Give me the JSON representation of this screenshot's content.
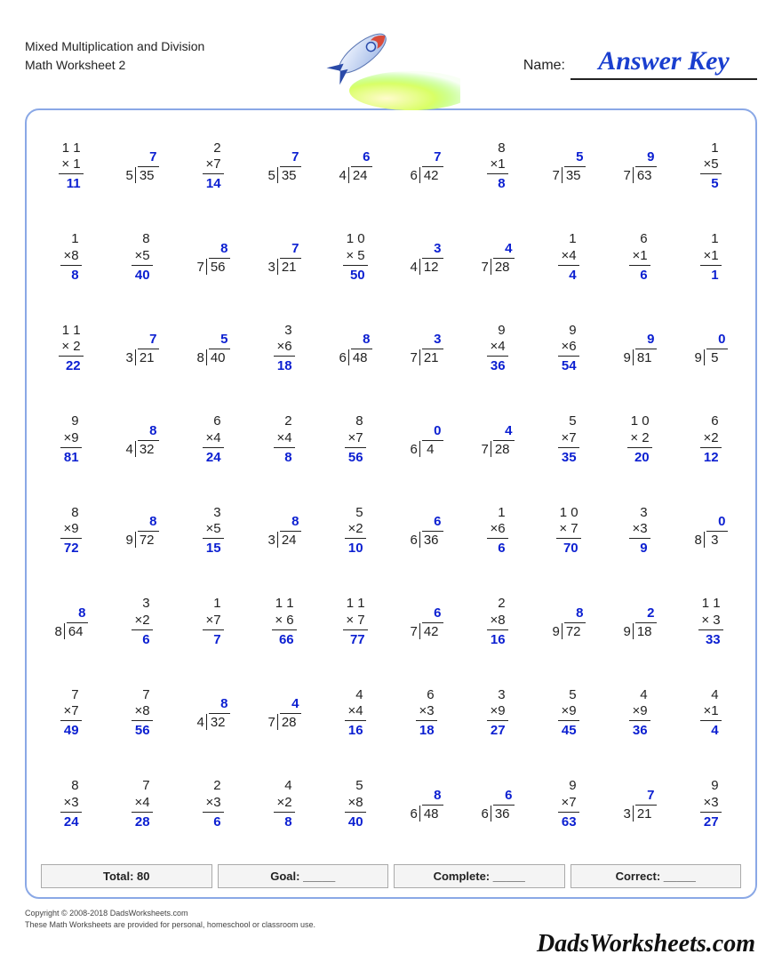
{
  "header": {
    "title_line1": "Mixed Multiplication and Division",
    "title_line2": "Math Worksheet 2",
    "name_label": "Name:",
    "answer_key": "Answer Key"
  },
  "colors": {
    "answer": "#0b1fd1",
    "frame_border": "#8aa8e6",
    "text": "#222222",
    "bg": "#ffffff"
  },
  "problems": [
    [
      {
        "t": "m",
        "a": "1 1",
        "b": "× 1",
        "ans": "11"
      },
      {
        "t": "d",
        "dvr": "5",
        "dvd": "35",
        "q": "7"
      },
      {
        "t": "m",
        "a": "2",
        "b": "×7",
        "ans": "14"
      },
      {
        "t": "d",
        "dvr": "5",
        "dvd": "35",
        "q": "7"
      },
      {
        "t": "d",
        "dvr": "4",
        "dvd": "24",
        "q": "6"
      },
      {
        "t": "d",
        "dvr": "6",
        "dvd": "42",
        "q": "7"
      },
      {
        "t": "m",
        "a": "8",
        "b": "×1",
        "ans": "8"
      },
      {
        "t": "d",
        "dvr": "7",
        "dvd": "35",
        "q": "5"
      },
      {
        "t": "d",
        "dvr": "7",
        "dvd": "63",
        "q": "9"
      },
      {
        "t": "m",
        "a": "1",
        "b": "×5",
        "ans": "5"
      }
    ],
    [
      {
        "t": "m",
        "a": "1",
        "b": "×8",
        "ans": "8"
      },
      {
        "t": "m",
        "a": "8",
        "b": "×5",
        "ans": "40"
      },
      {
        "t": "d",
        "dvr": "7",
        "dvd": "56",
        "q": "8"
      },
      {
        "t": "d",
        "dvr": "3",
        "dvd": "21",
        "q": "7"
      },
      {
        "t": "m",
        "a": "1 0",
        "b": "× 5",
        "ans": "50"
      },
      {
        "t": "d",
        "dvr": "4",
        "dvd": "12",
        "q": "3"
      },
      {
        "t": "d",
        "dvr": "7",
        "dvd": "28",
        "q": "4"
      },
      {
        "t": "m",
        "a": "1",
        "b": "×4",
        "ans": "4"
      },
      {
        "t": "m",
        "a": "6",
        "b": "×1",
        "ans": "6"
      },
      {
        "t": "m",
        "a": "1",
        "b": "×1",
        "ans": "1"
      }
    ],
    [
      {
        "t": "m",
        "a": "1 1",
        "b": "× 2",
        "ans": "22"
      },
      {
        "t": "d",
        "dvr": "3",
        "dvd": "21",
        "q": "7"
      },
      {
        "t": "d",
        "dvr": "8",
        "dvd": "40",
        "q": "5"
      },
      {
        "t": "m",
        "a": "3",
        "b": "×6",
        "ans": "18"
      },
      {
        "t": "d",
        "dvr": "6",
        "dvd": "48",
        "q": "8"
      },
      {
        "t": "d",
        "dvr": "7",
        "dvd": "21",
        "q": "3"
      },
      {
        "t": "m",
        "a": "9",
        "b": "×4",
        "ans": "36"
      },
      {
        "t": "m",
        "a": "9",
        "b": "×6",
        "ans": "54"
      },
      {
        "t": "d",
        "dvr": "9",
        "dvd": "81",
        "q": "9"
      },
      {
        "t": "d",
        "dvr": "9",
        "dvd": "5",
        "q": "0"
      }
    ],
    [
      {
        "t": "m",
        "a": "9",
        "b": "×9",
        "ans": "81"
      },
      {
        "t": "d",
        "dvr": "4",
        "dvd": "32",
        "q": "8"
      },
      {
        "t": "m",
        "a": "6",
        "b": "×4",
        "ans": "24"
      },
      {
        "t": "m",
        "a": "2",
        "b": "×4",
        "ans": "8"
      },
      {
        "t": "m",
        "a": "8",
        "b": "×7",
        "ans": "56"
      },
      {
        "t": "d",
        "dvr": "6",
        "dvd": "4",
        "q": "0"
      },
      {
        "t": "d",
        "dvr": "7",
        "dvd": "28",
        "q": "4"
      },
      {
        "t": "m",
        "a": "5",
        "b": "×7",
        "ans": "35"
      },
      {
        "t": "m",
        "a": "1 0",
        "b": "× 2",
        "ans": "20"
      },
      {
        "t": "m",
        "a": "6",
        "b": "×2",
        "ans": "12"
      }
    ],
    [
      {
        "t": "m",
        "a": "8",
        "b": "×9",
        "ans": "72"
      },
      {
        "t": "d",
        "dvr": "9",
        "dvd": "72",
        "q": "8"
      },
      {
        "t": "m",
        "a": "3",
        "b": "×5",
        "ans": "15"
      },
      {
        "t": "d",
        "dvr": "3",
        "dvd": "24",
        "q": "8"
      },
      {
        "t": "m",
        "a": "5",
        "b": "×2",
        "ans": "10"
      },
      {
        "t": "d",
        "dvr": "6",
        "dvd": "36",
        "q": "6"
      },
      {
        "t": "m",
        "a": "1",
        "b": "×6",
        "ans": "6"
      },
      {
        "t": "m",
        "a": "1 0",
        "b": "× 7",
        "ans": "70"
      },
      {
        "t": "m",
        "a": "3",
        "b": "×3",
        "ans": "9"
      },
      {
        "t": "d",
        "dvr": "8",
        "dvd": "3",
        "q": "0"
      }
    ],
    [
      {
        "t": "d",
        "dvr": "8",
        "dvd": "64",
        "q": "8"
      },
      {
        "t": "m",
        "a": "3",
        "b": "×2",
        "ans": "6"
      },
      {
        "t": "m",
        "a": "1",
        "b": "×7",
        "ans": "7"
      },
      {
        "t": "m",
        "a": "1 1",
        "b": "× 6",
        "ans": "66"
      },
      {
        "t": "m",
        "a": "1 1",
        "b": "× 7",
        "ans": "77"
      },
      {
        "t": "d",
        "dvr": "7",
        "dvd": "42",
        "q": "6"
      },
      {
        "t": "m",
        "a": "2",
        "b": "×8",
        "ans": "16"
      },
      {
        "t": "d",
        "dvr": "9",
        "dvd": "72",
        "q": "8"
      },
      {
        "t": "d",
        "dvr": "9",
        "dvd": "18",
        "q": "2"
      },
      {
        "t": "m",
        "a": "1 1",
        "b": "× 3",
        "ans": "33"
      }
    ],
    [
      {
        "t": "m",
        "a": "7",
        "b": "×7",
        "ans": "49"
      },
      {
        "t": "m",
        "a": "7",
        "b": "×8",
        "ans": "56"
      },
      {
        "t": "d",
        "dvr": "4",
        "dvd": "32",
        "q": "8"
      },
      {
        "t": "d",
        "dvr": "7",
        "dvd": "28",
        "q": "4"
      },
      {
        "t": "m",
        "a": "4",
        "b": "×4",
        "ans": "16"
      },
      {
        "t": "m",
        "a": "6",
        "b": "×3",
        "ans": "18"
      },
      {
        "t": "m",
        "a": "3",
        "b": "×9",
        "ans": "27"
      },
      {
        "t": "m",
        "a": "5",
        "b": "×9",
        "ans": "45"
      },
      {
        "t": "m",
        "a": "4",
        "b": "×9",
        "ans": "36"
      },
      {
        "t": "m",
        "a": "4",
        "b": "×1",
        "ans": "4"
      }
    ],
    [
      {
        "t": "m",
        "a": "8",
        "b": "×3",
        "ans": "24"
      },
      {
        "t": "m",
        "a": "7",
        "b": "×4",
        "ans": "28"
      },
      {
        "t": "m",
        "a": "2",
        "b": "×3",
        "ans": "6"
      },
      {
        "t": "m",
        "a": "4",
        "b": "×2",
        "ans": "8"
      },
      {
        "t": "m",
        "a": "5",
        "b": "×8",
        "ans": "40"
      },
      {
        "t": "d",
        "dvr": "6",
        "dvd": "48",
        "q": "8"
      },
      {
        "t": "d",
        "dvr": "6",
        "dvd": "36",
        "q": "6"
      },
      {
        "t": "m",
        "a": "9",
        "b": "×7",
        "ans": "63"
      },
      {
        "t": "d",
        "dvr": "3",
        "dvd": "21",
        "q": "7"
      },
      {
        "t": "m",
        "a": "9",
        "b": "×3",
        "ans": "27"
      }
    ]
  ],
  "stats": {
    "total_label": "Total: 80",
    "goal_label": "Goal: _____",
    "complete_label": "Complete: _____",
    "correct_label": "Correct: _____"
  },
  "footer": {
    "copyright": "Copyright © 2008-2018 DadsWorksheets.com",
    "note": "These Math Worksheets are provided for personal, homeschool or classroom use.",
    "brand": "DadsWorksheets.com"
  }
}
